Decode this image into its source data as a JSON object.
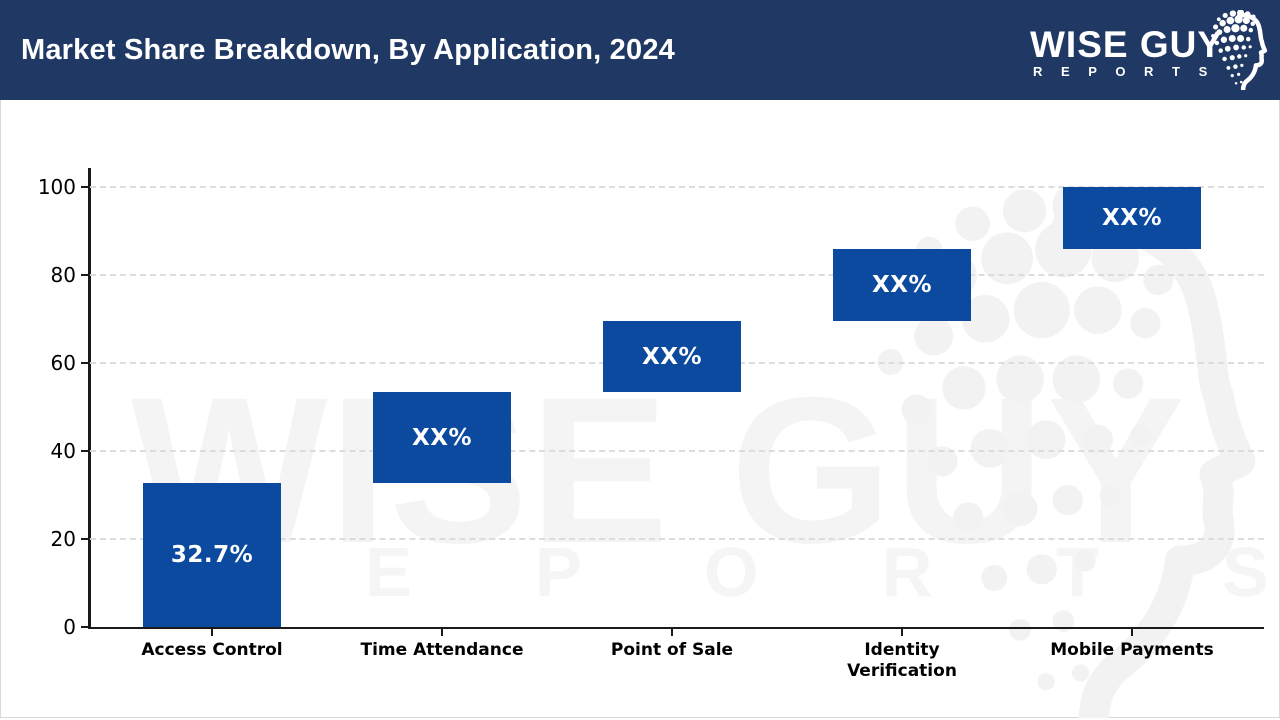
{
  "header": {
    "title": "Market Share Breakdown, By Application, 2024",
    "logo": {
      "line1": "WISE GUY",
      "line2": "R E P O R T S"
    }
  },
  "watermark": {
    "line1": "WISE GUY",
    "line2": "R E P O R T S"
  },
  "chart_data": {
    "type": "bar",
    "subtype": "waterfall",
    "title": "Market Share Breakdown, By Application, 2024",
    "categories": [
      "Access Control",
      "Time Attendance",
      "Point of Sale",
      "Identity Verification",
      "Mobile Payments"
    ],
    "segments": [
      {
        "category": "Access Control",
        "label": "32.7%",
        "start": 0,
        "end": 32.7
      },
      {
        "category": "Time Attendance",
        "label": "XX%",
        "start": 32.7,
        "end": 53.3
      },
      {
        "category": "Point of Sale",
        "label": "XX%",
        "start": 53.3,
        "end": 69.6
      },
      {
        "category": "Identity Verification",
        "label": "XX%",
        "start": 69.6,
        "end": 86.0
      },
      {
        "category": "Mobile Payments",
        "label": "XX%",
        "start": 86.0,
        "end": 100.0
      }
    ],
    "values": [
      32.7,
      20.6,
      16.3,
      16.4,
      14.0
    ],
    "ylim": [
      0,
      100
    ],
    "yticks": [
      0,
      20,
      40,
      60,
      80,
      100
    ],
    "xlabel": "",
    "ylabel": "",
    "grid": "horizontal-dashed",
    "legend": "none",
    "bar_color": "#0b4a9e",
    "bar_label_color": "#ffffff",
    "axis_color": "#1a1a1a",
    "header_bg": "#1f3864"
  }
}
